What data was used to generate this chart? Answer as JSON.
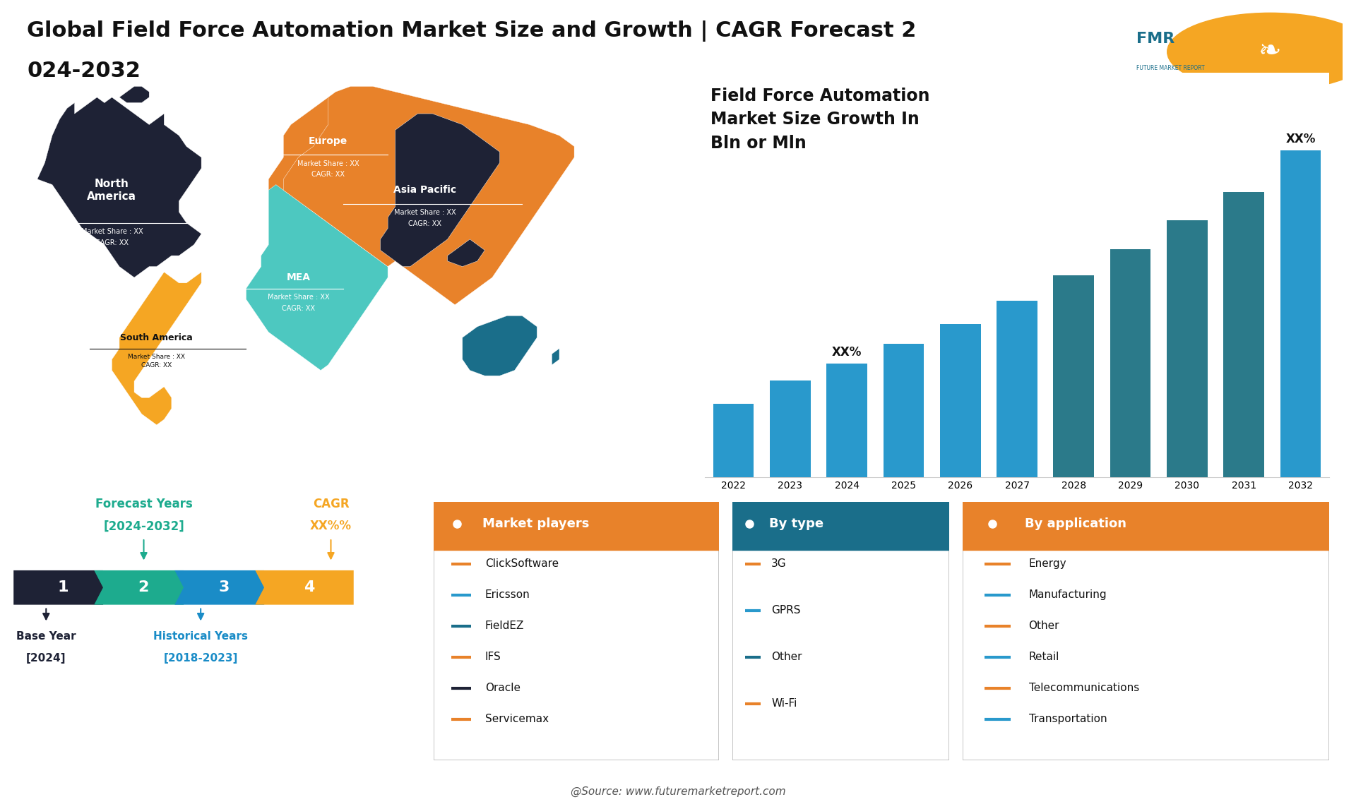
{
  "title_line1": "Global Field Force Automation Market Size and Growth | CAGR Forecast 2",
  "title_line2": "024-2032",
  "chart_title": "Field Force Automation\nMarket Size Growth In\nBln or Mln",
  "bar_years": [
    "2022",
    "2023",
    "2024",
    "2025",
    "2026",
    "2027",
    "2028",
    "2029",
    "2030",
    "2031",
    "2032"
  ],
  "bar_values": [
    1.0,
    1.32,
    1.55,
    1.82,
    2.08,
    2.4,
    2.75,
    3.1,
    3.5,
    3.88,
    4.45
  ],
  "bar_colors": [
    "#2999cc",
    "#2999cc",
    "#2999cc",
    "#2999cc",
    "#2999cc",
    "#2999cc",
    "#2b7a8a",
    "#2b7a8a",
    "#2b7a8a",
    "#2b7a8a",
    "#2999cc"
  ],
  "bar_annotations_idx": [
    2,
    10
  ],
  "bar_annotation_text": "XX%",
  "forecast_label_1": "Forecast Years",
  "forecast_label_2": "[2024-2032]",
  "cagr_label_1": "CAGR",
  "cagr_label_2": "XX%%",
  "base_year_label_1": "Base Year",
  "base_year_label_2": "[2024]",
  "historical_label_1": "Historical Years",
  "historical_label_2": "[2018-2023]",
  "segment_labels": [
    "1",
    "2",
    "3",
    "4"
  ],
  "segment_colors": [
    "#1e2235",
    "#1dab8e",
    "#1a8cc7",
    "#f5a623"
  ],
  "market_players_header": "Market players",
  "market_players_header_color": "#e8822a",
  "market_players": [
    "ClickSoftware",
    "Ericsson",
    "FieldEZ",
    "IFS",
    "Oracle",
    "Servicemax"
  ],
  "player_dash_colors": [
    "#e8822a",
    "#2999cc",
    "#1a6e8a",
    "#e8822a",
    "#1e2235",
    "#e8822a"
  ],
  "by_type_header": "By type",
  "by_type_header_color": "#1a6e8a",
  "by_type": [
    "3G",
    "GPRS",
    "Other",
    "Wi-Fi"
  ],
  "type_dash_colors": [
    "#e8822a",
    "#2999cc",
    "#1a6e8a",
    "#e8822a"
  ],
  "by_application_header": "By application",
  "by_application_header_color": "#e8822a",
  "by_application": [
    "Energy",
    "Manufacturing",
    "Other",
    "Retail",
    "Telecommunications",
    "Transportation"
  ],
  "app_dash_colors": [
    "#e8822a",
    "#2999cc",
    "#e8822a",
    "#2999cc",
    "#e8822a",
    "#2999cc"
  ],
  "source_text": "@Source: www.futuremarketreport.com",
  "bg_color": "#ffffff",
  "title_fontsize": 22,
  "na_color": "#1e2235",
  "sa_color": "#f5a623",
  "europe_color": "#e8822a",
  "mea_color": "#4dc8c0",
  "ap_color": "#1e2235",
  "aus_color": "#1a6e8a",
  "forecast_color": "#1dab8e",
  "cagr_color": "#f5a623",
  "base_year_color": "#1e2235",
  "hist_color": "#1a8cc7"
}
